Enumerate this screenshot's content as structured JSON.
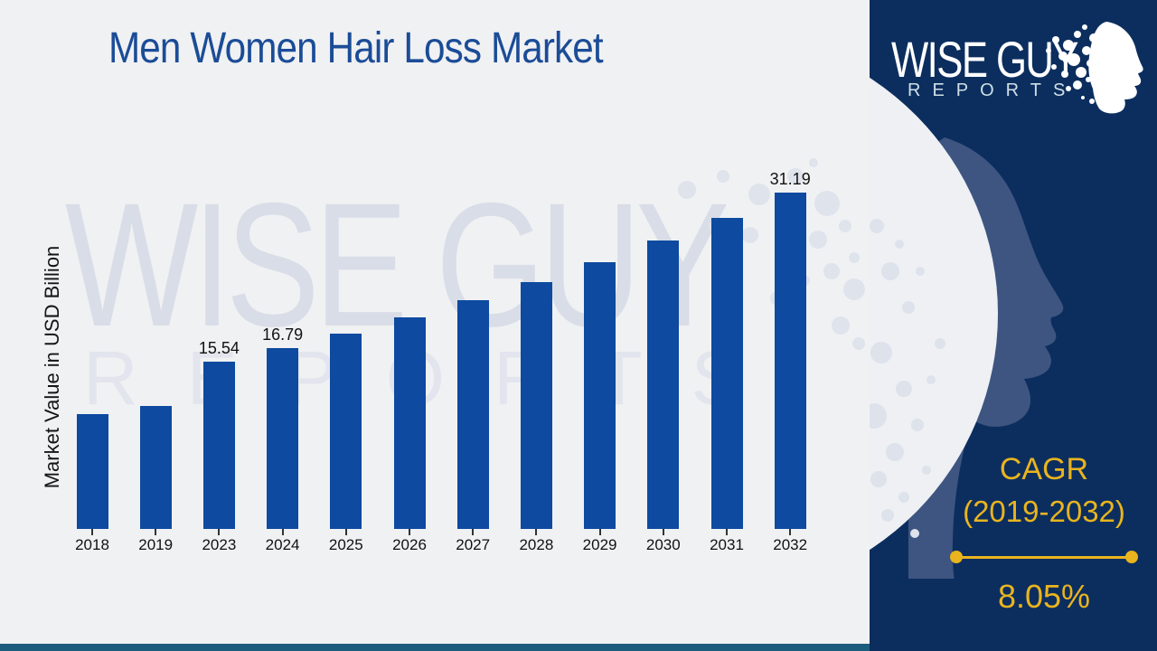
{
  "title": "Men Women Hair Loss Market",
  "y_axis_label": "Market Value in USD Billion",
  "watermark": {
    "line1": "WISE GUY",
    "line2": "REPORTS"
  },
  "logo": {
    "line1": "WISE GUY",
    "line2": "REPORTS"
  },
  "cagr": {
    "label": "CAGR",
    "range": "(2019-2032)",
    "value": "8.05%"
  },
  "colors": {
    "bar": "#0d4aa0",
    "panel_navy": "#0c2e5f",
    "accent_yellow": "#e9b41e",
    "teal_strip": "#1c5d7d",
    "title_blue": "#1b4c97",
    "face_slate": "#3d5580"
  },
  "chart_data": {
    "type": "bar",
    "title": "Men Women Hair Loss Market",
    "xlabel": "",
    "ylabel": "Market Value in USD Billion",
    "unit": "USD Billion",
    "ylim": [
      0,
      33
    ],
    "grid": false,
    "legend": false,
    "categories": [
      "2018",
      "2019",
      "2023",
      "2024",
      "2025",
      "2026",
      "2027",
      "2028",
      "2029",
      "2030",
      "2031",
      "2032"
    ],
    "values": [
      10.61,
      11.39,
      15.54,
      16.79,
      18.14,
      19.6,
      21.18,
      22.89,
      24.73,
      26.72,
      28.87,
      31.19
    ],
    "value_labels": {
      "2023": "15.54",
      "2024": "16.79",
      "2032": "31.19"
    },
    "cagr_annotation": {
      "label": "CAGR",
      "range": "(2019-2032)",
      "value": "8.05%"
    }
  }
}
